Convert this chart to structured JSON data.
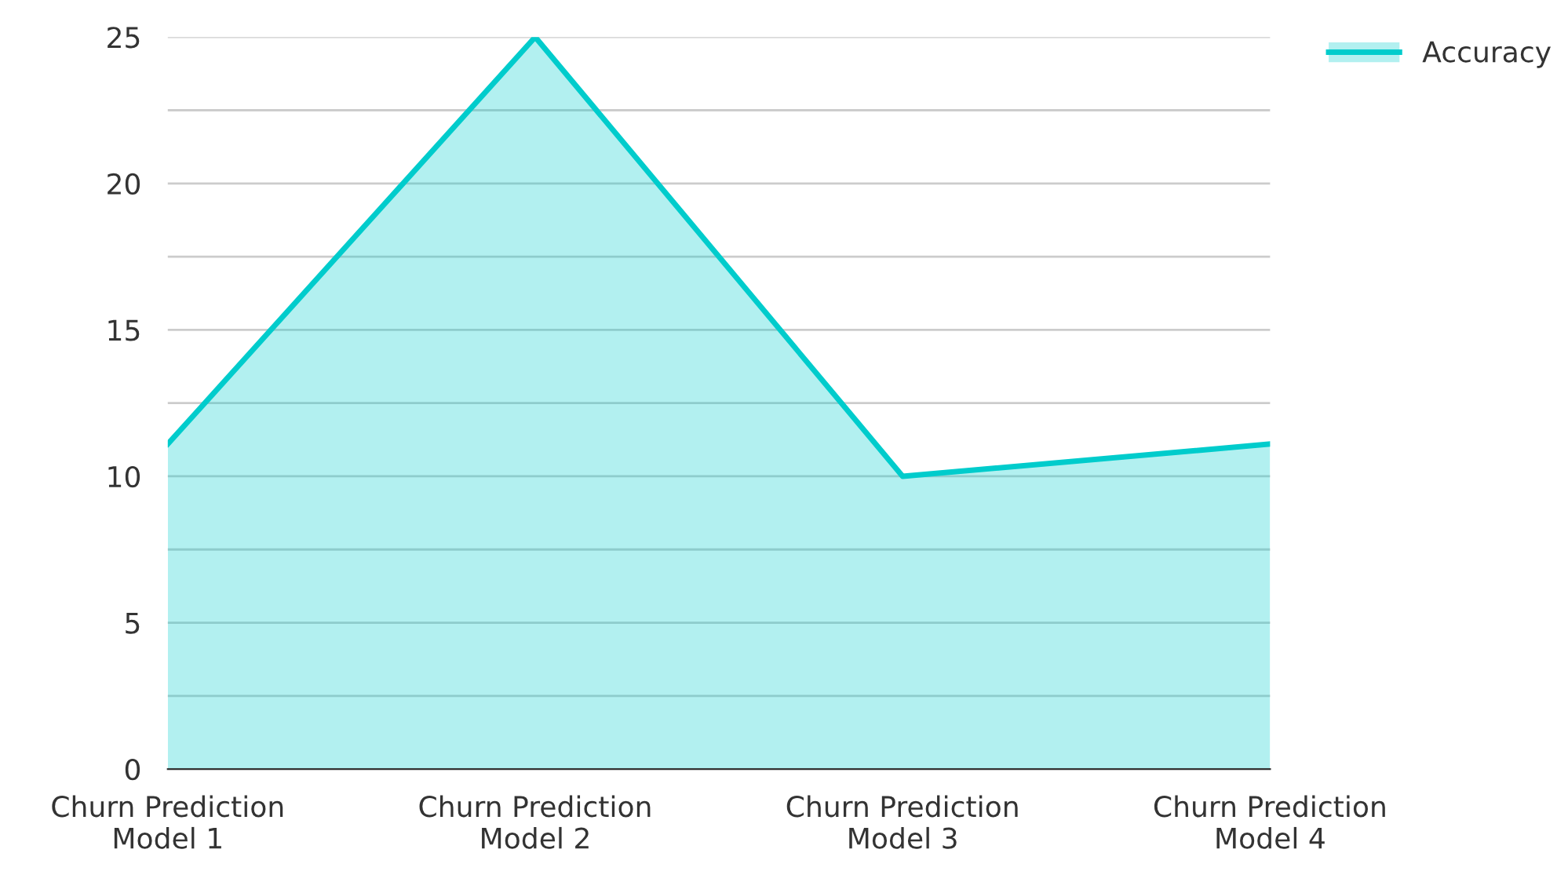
{
  "chart_data": {
    "type": "area",
    "categories": [
      "Churn Prediction\nModel 1",
      "Churn Prediction\nModel 2",
      "Churn Prediction\nModel 3",
      "Churn Prediction\nModel 4"
    ],
    "series": [
      {
        "name": "Accuracy",
        "color": "#00cccc",
        "values": [
          11.1,
          25,
          10,
          11.1
        ]
      }
    ],
    "ylim": [
      0,
      25
    ],
    "yticks": [
      0,
      {
        "value": 2.5,
        "label": null
      },
      5,
      {
        "value": 7.5,
        "label": null
      },
      10,
      {
        "value": 12.5,
        "label": null
      },
      15,
      {
        "value": 17.5,
        "label": null
      },
      20,
      {
        "value": 22.5,
        "label": null
      },
      25
    ],
    "grid": "y",
    "legend": "top right"
  }
}
